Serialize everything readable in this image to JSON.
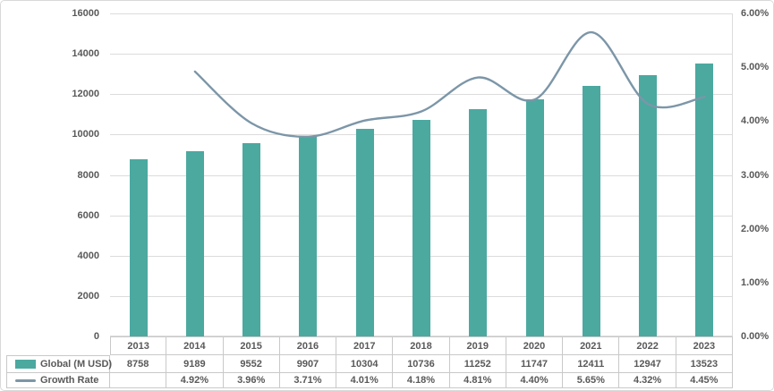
{
  "chart_data": {
    "type": "bar",
    "subtype": "bar+line-combo",
    "title": "",
    "categories": [
      "2013",
      "2014",
      "2015",
      "2016",
      "2017",
      "2018",
      "2019",
      "2020",
      "2021",
      "2022",
      "2023"
    ],
    "series": [
      {
        "name": "Global (M USD)",
        "type": "bar",
        "axis": "left",
        "values": [
          8758,
          9189,
          9552,
          9907,
          10304,
          10736,
          11252,
          11747,
          12411,
          12947,
          13523
        ],
        "value_labels": [
          "8758",
          "9189",
          "9552",
          "9907",
          "10304",
          "10736",
          "11252",
          "11747",
          "12411",
          "12947",
          "13523"
        ]
      },
      {
        "name": "Growth Rate",
        "type": "line",
        "axis": "right",
        "values": [
          null,
          4.92,
          3.96,
          3.71,
          4.01,
          4.18,
          4.81,
          4.4,
          5.65,
          4.32,
          4.45
        ],
        "value_labels": [
          "",
          "4.92%",
          "3.96%",
          "3.71%",
          "4.01%",
          "4.18%",
          "4.81%",
          "4.40%",
          "5.65%",
          "4.32%",
          "4.45%"
        ]
      }
    ],
    "left_axis": {
      "min": 0,
      "max": 16000,
      "step": 2000,
      "tick_labels": [
        "16000",
        "14000",
        "12000",
        "10000",
        "8000",
        "6000",
        "4000",
        "2000",
        "0"
      ]
    },
    "right_axis": {
      "min": 0,
      "max": 6,
      "step": 1,
      "tick_labels": [
        "6.00%",
        "5.00%",
        "4.00%",
        "3.00%",
        "2.00%",
        "1.00%",
        "0.00%"
      ]
    },
    "gridlines": true,
    "legend_position": "data-table-left",
    "colors": {
      "bar": "#4BA9A0",
      "line": "#7C96A8",
      "grid": "#DCDCDC",
      "table_border": "#C9C9C9",
      "text": "#595959"
    }
  }
}
